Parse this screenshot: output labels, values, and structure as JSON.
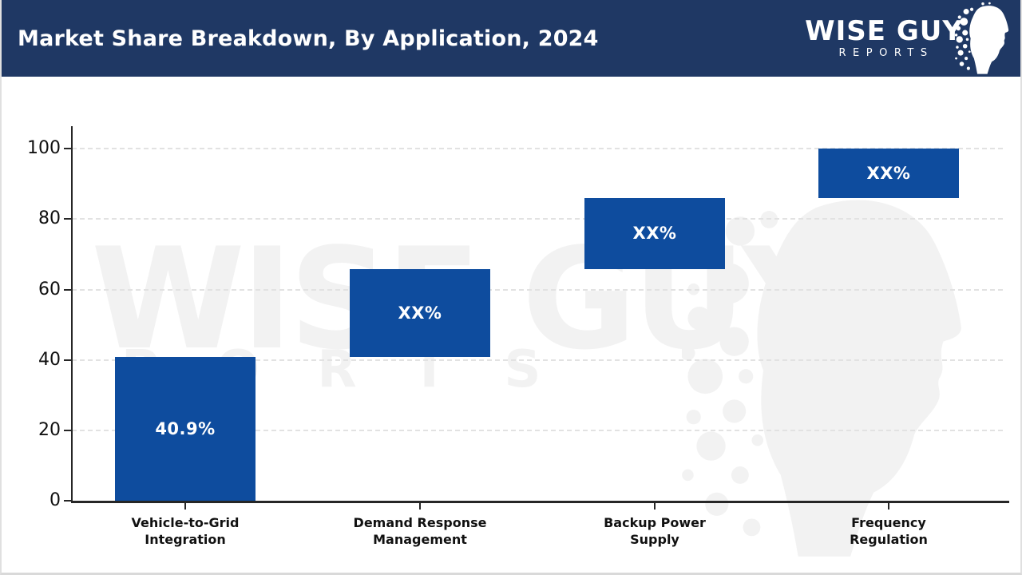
{
  "header": {
    "title": "Market Share Breakdown, By Application, 2024",
    "bg_color": "#1f3864",
    "logo": {
      "line1": "WISE GUY",
      "line2": "REPORTS"
    }
  },
  "watermark": {
    "line1": "WISE GUY",
    "line2": "PORTS"
  },
  "chart_data": {
    "type": "bar",
    "subtype": "waterfall",
    "title": "Market Share Breakdown, By Application, 2024",
    "xlabel": "",
    "ylabel": "",
    "ylim": [
      0,
      105
    ],
    "y_ticks": [
      0,
      20,
      40,
      60,
      80,
      100
    ],
    "grid": "horizontal dashed",
    "legend": "none",
    "bar_color": "#0e4c9e",
    "label_color": "#ffffff",
    "categories": [
      "Vehicle-to-Grid Integration",
      "Demand Response Management",
      "Backup Power Supply",
      "Frequency Regulation"
    ],
    "bars": [
      {
        "category_lines": [
          "Vehicle-to-Grid",
          "Integration"
        ],
        "start": 0,
        "end": 40.9,
        "value": 40.9,
        "label": "40.9%"
      },
      {
        "category_lines": [
          "Demand Response",
          "Management"
        ],
        "start": 40.9,
        "end": 65.9,
        "value": 25.0,
        "label": "XX%"
      },
      {
        "category_lines": [
          "Backup Power",
          "Supply"
        ],
        "start": 65.9,
        "end": 86.1,
        "value": 20.2,
        "label": "XX%"
      },
      {
        "category_lines": [
          "Frequency",
          "Regulation"
        ],
        "start": 86.1,
        "end": 100.0,
        "value": 13.9,
        "label": "XX%"
      }
    ]
  }
}
